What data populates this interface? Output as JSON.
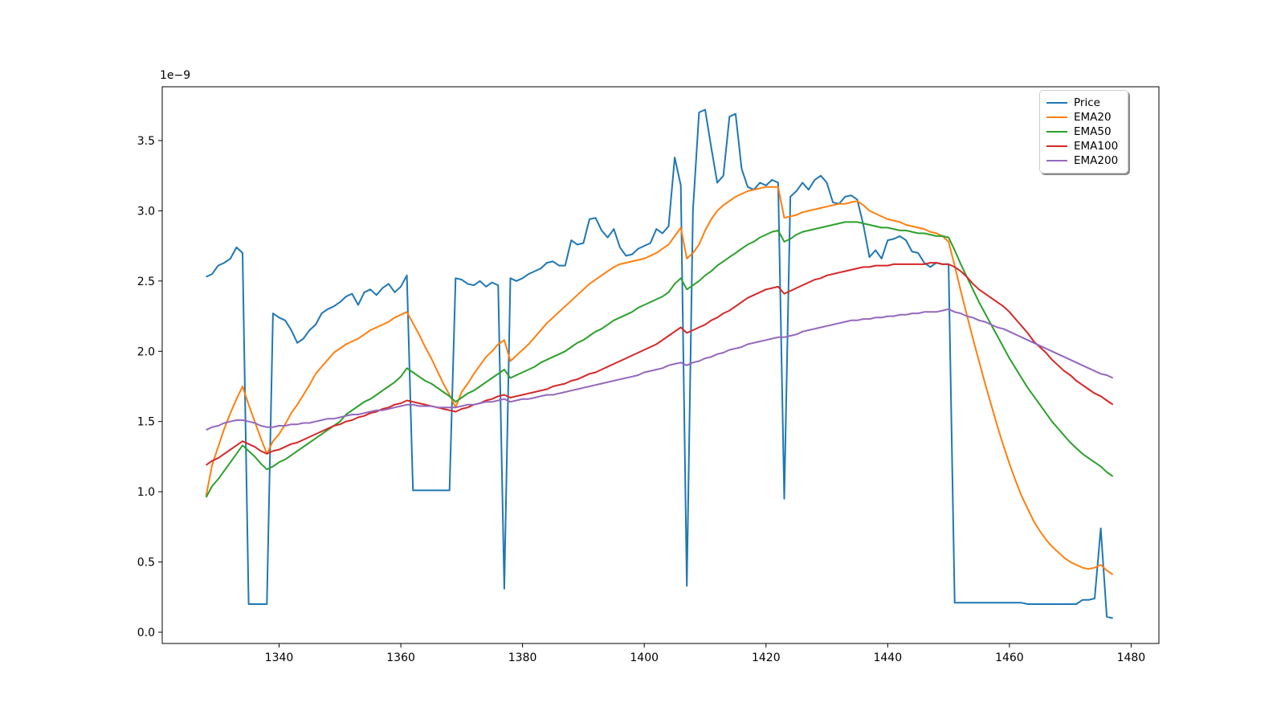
{
  "figure": {
    "background": "#ffffff"
  },
  "chart_data": {
    "type": "line",
    "title": "",
    "xlabel": "",
    "ylabel": "",
    "offset_text": "1e−9",
    "y_values_scale": "1e-9",
    "grid": false,
    "legend_position": "upper right",
    "xlim": [
      1320.8,
      1484.56
    ],
    "ylim": [
      -0.08,
      3.883
    ],
    "xticks": [
      1340,
      1360,
      1380,
      1400,
      1420,
      1440,
      1460,
      1480
    ],
    "yticks": [
      0.0,
      0.5,
      1.0,
      1.5,
      2.0,
      2.5,
      3.0,
      3.5
    ],
    "x_start": 1328,
    "x_step": 1,
    "series": [
      {
        "name": "Price",
        "color": "#1f77b4",
        "values": [
          2.53,
          2.55,
          2.61,
          2.63,
          2.66,
          2.74,
          2.7,
          0.2,
          0.2,
          0.2,
          0.2,
          2.27,
          2.24,
          2.22,
          2.15,
          2.06,
          2.09,
          2.15,
          2.19,
          2.27,
          2.3,
          2.32,
          2.35,
          2.39,
          2.41,
          2.33,
          2.42,
          2.44,
          2.4,
          2.45,
          2.48,
          2.42,
          2.46,
          2.54,
          1.01,
          1.01,
          1.01,
          1.01,
          1.01,
          1.01,
          1.01,
          2.52,
          2.51,
          2.48,
          2.47,
          2.5,
          2.46,
          2.49,
          2.47,
          0.31,
          2.52,
          2.5,
          2.52,
          2.55,
          2.57,
          2.59,
          2.63,
          2.64,
          2.61,
          2.61,
          2.79,
          2.76,
          2.77,
          2.94,
          2.95,
          2.86,
          2.81,
          2.87,
          2.74,
          2.68,
          2.69,
          2.73,
          2.75,
          2.77,
          2.87,
          2.84,
          2.89,
          3.38,
          3.18,
          0.33,
          3.0,
          3.7,
          3.72,
          3.45,
          3.2,
          3.25,
          3.67,
          3.69,
          3.3,
          3.17,
          3.15,
          3.2,
          3.18,
          3.22,
          3.2,
          0.95,
          3.1,
          3.14,
          3.2,
          3.15,
          3.22,
          3.25,
          3.2,
          3.06,
          3.05,
          3.1,
          3.11,
          3.08,
          2.9,
          2.67,
          2.72,
          2.66,
          2.79,
          2.8,
          2.82,
          2.79,
          2.71,
          2.7,
          2.63,
          2.6,
          2.63,
          2.62,
          2.62,
          0.21,
          0.21,
          0.21,
          0.21,
          0.21,
          0.21,
          0.21,
          0.21,
          0.21,
          0.21,
          0.21,
          0.21,
          0.2,
          0.2,
          0.2,
          0.2,
          0.2,
          0.2,
          0.2,
          0.2,
          0.2,
          0.23,
          0.23,
          0.24,
          0.74,
          0.11,
          0.1
        ]
      },
      {
        "name": "EMA20",
        "color": "#ff7f0e",
        "values": [
          0.97,
          1.19,
          1.32,
          1.45,
          1.56,
          1.66,
          1.75,
          1.62,
          1.5,
          1.38,
          1.27,
          1.36,
          1.41,
          1.48,
          1.56,
          1.62,
          1.69,
          1.76,
          1.84,
          1.89,
          1.94,
          1.99,
          2.02,
          2.05,
          2.07,
          2.09,
          2.12,
          2.15,
          2.17,
          2.19,
          2.21,
          2.24,
          2.26,
          2.28,
          2.2,
          2.12,
          2.03,
          1.95,
          1.86,
          1.77,
          1.69,
          1.6,
          1.71,
          1.77,
          1.84,
          1.9,
          1.96,
          2.0,
          2.05,
          2.08,
          1.93,
          1.97,
          2.01,
          2.05,
          2.1,
          2.15,
          2.2,
          2.24,
          2.28,
          2.32,
          2.36,
          2.4,
          2.44,
          2.48,
          2.51,
          2.54,
          2.57,
          2.6,
          2.62,
          2.63,
          2.64,
          2.65,
          2.66,
          2.68,
          2.7,
          2.73,
          2.76,
          2.82,
          2.88,
          2.66,
          2.7,
          2.76,
          2.86,
          2.94,
          3.0,
          3.04,
          3.07,
          3.1,
          3.12,
          3.14,
          3.15,
          3.16,
          3.17,
          3.17,
          3.17,
          2.95,
          2.96,
          2.97,
          2.99,
          3.0,
          3.01,
          3.02,
          3.03,
          3.04,
          3.05,
          3.05,
          3.06,
          3.07,
          3.04,
          3.0,
          2.98,
          2.96,
          2.94,
          2.93,
          2.92,
          2.9,
          2.89,
          2.88,
          2.87,
          2.85,
          2.84,
          2.82,
          2.78,
          2.61,
          2.43,
          2.26,
          2.09,
          1.93,
          1.77,
          1.62,
          1.47,
          1.33,
          1.2,
          1.08,
          0.97,
          0.88,
          0.79,
          0.72,
          0.66,
          0.61,
          0.57,
          0.53,
          0.5,
          0.48,
          0.46,
          0.45,
          0.46,
          0.48,
          0.44,
          0.41
        ]
      },
      {
        "name": "EMA50",
        "color": "#2ca02c",
        "values": [
          0.96,
          1.04,
          1.09,
          1.15,
          1.21,
          1.27,
          1.33,
          1.29,
          1.25,
          1.2,
          1.16,
          1.18,
          1.21,
          1.23,
          1.26,
          1.29,
          1.32,
          1.35,
          1.38,
          1.41,
          1.44,
          1.47,
          1.5,
          1.55,
          1.58,
          1.61,
          1.64,
          1.66,
          1.69,
          1.72,
          1.75,
          1.78,
          1.82,
          1.88,
          1.85,
          1.82,
          1.79,
          1.77,
          1.74,
          1.71,
          1.68,
          1.64,
          1.67,
          1.7,
          1.72,
          1.75,
          1.78,
          1.81,
          1.84,
          1.87,
          1.81,
          1.83,
          1.85,
          1.87,
          1.89,
          1.92,
          1.94,
          1.96,
          1.98,
          2.0,
          2.03,
          2.06,
          2.08,
          2.11,
          2.14,
          2.16,
          2.19,
          2.22,
          2.24,
          2.26,
          2.28,
          2.31,
          2.33,
          2.35,
          2.37,
          2.39,
          2.42,
          2.48,
          2.52,
          2.44,
          2.47,
          2.5,
          2.54,
          2.57,
          2.61,
          2.64,
          2.67,
          2.7,
          2.73,
          2.76,
          2.78,
          2.81,
          2.83,
          2.85,
          2.86,
          2.78,
          2.8,
          2.83,
          2.85,
          2.86,
          2.87,
          2.88,
          2.89,
          2.9,
          2.91,
          2.92,
          2.92,
          2.92,
          2.91,
          2.9,
          2.89,
          2.88,
          2.88,
          2.87,
          2.86,
          2.86,
          2.85,
          2.84,
          2.84,
          2.83,
          2.82,
          2.82,
          2.81,
          2.72,
          2.62,
          2.53,
          2.44,
          2.35,
          2.27,
          2.19,
          2.11,
          2.03,
          1.95,
          1.88,
          1.81,
          1.74,
          1.68,
          1.62,
          1.56,
          1.5,
          1.45,
          1.4,
          1.35,
          1.31,
          1.27,
          1.24,
          1.21,
          1.18,
          1.14,
          1.11
        ]
      },
      {
        "name": "EMA100",
        "color": "#d62728",
        "values": [
          1.19,
          1.22,
          1.24,
          1.27,
          1.3,
          1.33,
          1.36,
          1.34,
          1.32,
          1.29,
          1.27,
          1.29,
          1.3,
          1.32,
          1.34,
          1.35,
          1.37,
          1.39,
          1.41,
          1.43,
          1.45,
          1.47,
          1.48,
          1.5,
          1.51,
          1.53,
          1.54,
          1.56,
          1.57,
          1.59,
          1.6,
          1.62,
          1.63,
          1.65,
          1.64,
          1.63,
          1.62,
          1.61,
          1.6,
          1.59,
          1.58,
          1.57,
          1.59,
          1.6,
          1.62,
          1.63,
          1.65,
          1.66,
          1.68,
          1.69,
          1.67,
          1.68,
          1.69,
          1.7,
          1.71,
          1.72,
          1.73,
          1.75,
          1.76,
          1.77,
          1.79,
          1.8,
          1.82,
          1.84,
          1.85,
          1.87,
          1.89,
          1.91,
          1.93,
          1.95,
          1.97,
          1.99,
          2.01,
          2.03,
          2.05,
          2.08,
          2.11,
          2.14,
          2.17,
          2.13,
          2.15,
          2.17,
          2.19,
          2.22,
          2.24,
          2.27,
          2.29,
          2.32,
          2.35,
          2.38,
          2.4,
          2.42,
          2.44,
          2.45,
          2.46,
          2.41,
          2.43,
          2.45,
          2.47,
          2.49,
          2.51,
          2.52,
          2.54,
          2.55,
          2.56,
          2.57,
          2.58,
          2.59,
          2.6,
          2.6,
          2.61,
          2.61,
          2.61,
          2.62,
          2.62,
          2.62,
          2.62,
          2.62,
          2.62,
          2.63,
          2.63,
          2.62,
          2.62,
          2.6,
          2.57,
          2.53,
          2.48,
          2.44,
          2.41,
          2.38,
          2.35,
          2.32,
          2.28,
          2.23,
          2.18,
          2.13,
          2.07,
          2.03,
          1.99,
          1.94,
          1.9,
          1.86,
          1.83,
          1.79,
          1.76,
          1.73,
          1.7,
          1.68,
          1.65,
          1.62
        ]
      },
      {
        "name": "EMA200",
        "color": "#9467bd",
        "values": [
          1.44,
          1.46,
          1.47,
          1.49,
          1.5,
          1.51,
          1.51,
          1.5,
          1.49,
          1.47,
          1.46,
          1.46,
          1.47,
          1.47,
          1.48,
          1.48,
          1.49,
          1.49,
          1.5,
          1.51,
          1.52,
          1.52,
          1.53,
          1.54,
          1.55,
          1.55,
          1.56,
          1.57,
          1.58,
          1.58,
          1.59,
          1.6,
          1.61,
          1.62,
          1.62,
          1.61,
          1.61,
          1.61,
          1.6,
          1.6,
          1.6,
          1.6,
          1.61,
          1.62,
          1.62,
          1.63,
          1.64,
          1.64,
          1.65,
          1.66,
          1.64,
          1.65,
          1.66,
          1.66,
          1.67,
          1.68,
          1.69,
          1.69,
          1.7,
          1.71,
          1.72,
          1.73,
          1.74,
          1.75,
          1.76,
          1.77,
          1.78,
          1.79,
          1.8,
          1.81,
          1.82,
          1.83,
          1.85,
          1.86,
          1.87,
          1.88,
          1.9,
          1.91,
          1.92,
          1.9,
          1.92,
          1.93,
          1.95,
          1.96,
          1.98,
          1.99,
          2.01,
          2.02,
          2.03,
          2.05,
          2.06,
          2.07,
          2.08,
          2.09,
          2.1,
          2.1,
          2.11,
          2.12,
          2.14,
          2.15,
          2.16,
          2.17,
          2.18,
          2.19,
          2.2,
          2.21,
          2.22,
          2.22,
          2.23,
          2.23,
          2.24,
          2.24,
          2.25,
          2.25,
          2.26,
          2.26,
          2.27,
          2.27,
          2.28,
          2.28,
          2.28,
          2.29,
          2.3,
          2.28,
          2.27,
          2.25,
          2.24,
          2.22,
          2.21,
          2.19,
          2.17,
          2.16,
          2.14,
          2.12,
          2.1,
          2.08,
          2.06,
          2.04,
          2.02,
          2.0,
          1.98,
          1.96,
          1.94,
          1.92,
          1.9,
          1.88,
          1.86,
          1.84,
          1.83,
          1.81
        ]
      }
    ]
  }
}
